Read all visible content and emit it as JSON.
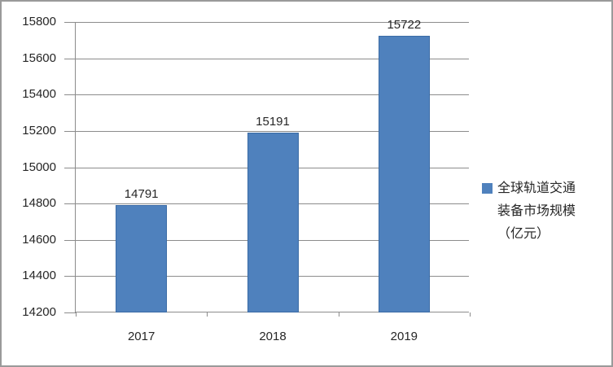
{
  "chart_data": {
    "type": "bar",
    "title": "",
    "categories": [
      "2017",
      "2018",
      "2019"
    ],
    "values": [
      14791,
      15191,
      15722
    ],
    "legend_label": "全球轨道交通装备市场规模（亿元）",
    "legend_position": "right",
    "data_labels": true,
    "grid": true,
    "xlabel": "",
    "ylabel": "",
    "ylim": [
      14200,
      15800
    ],
    "ytick_step": 200,
    "yticks": [
      14200,
      14400,
      14600,
      14800,
      15000,
      15200,
      15400,
      15600,
      15800
    ],
    "colors": {
      "bar_fill": "#4F81BD",
      "bar_edge": "#3A6BA5",
      "gridline": "#8C8C8C",
      "axis_line": "#8C8C8C",
      "text": "#262626",
      "frame_border": "#9A9A9A",
      "background": "#FFFFFF"
    }
  }
}
